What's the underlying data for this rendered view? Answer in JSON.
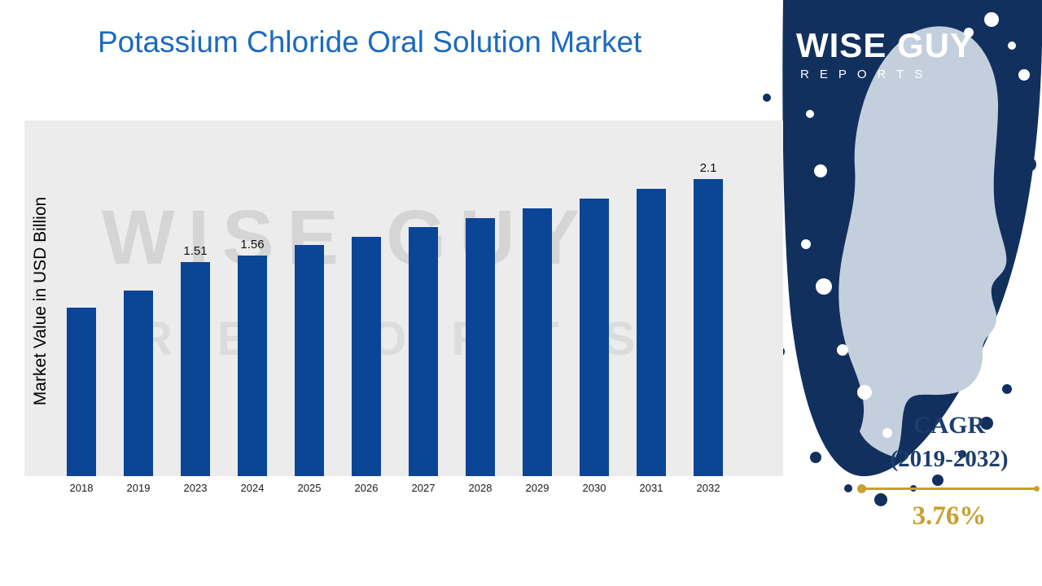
{
  "header": {
    "title": "Potassium Chloride Oral Solution Market"
  },
  "logo": {
    "line1": "WISE GUY",
    "line2": "REPORTS"
  },
  "watermark": {
    "line1": "WISE GUY",
    "line2": "REPORTS"
  },
  "chart_data": {
    "type": "bar",
    "title": "Potassium Chloride Oral Solution Market",
    "xlabel": "",
    "ylabel": "Market Value in USD Billion",
    "categories": [
      "2018",
      "2019",
      "2023",
      "2024",
      "2025",
      "2026",
      "2027",
      "2028",
      "2029",
      "2030",
      "2031",
      "2032"
    ],
    "values": [
      1.19,
      1.31,
      1.51,
      1.56,
      1.63,
      1.69,
      1.76,
      1.82,
      1.89,
      1.96,
      2.03,
      2.1
    ],
    "data_labels": [
      "",
      "",
      "1.51",
      "1.56",
      "",
      "",
      "",
      "",
      "",
      "",
      "",
      "2.1"
    ],
    "ylim": [
      0,
      2.5
    ],
    "grid": false,
    "legend": "none",
    "bar_color": "#0b4596"
  },
  "cagr": {
    "label": "CAGR",
    "range": "(2019-2032)",
    "value": "3.76%"
  },
  "icons": {
    "logo_figure": "face-profile-icon",
    "pattern": "halftone-dots"
  },
  "colors": {
    "title_blue": "#1a6ac0",
    "bar_blue": "#0b4596",
    "navy": "#12305e",
    "gold": "#c7a02e",
    "panel_gray": "#ececec",
    "face_gray_blue": "#c4cfdd"
  }
}
